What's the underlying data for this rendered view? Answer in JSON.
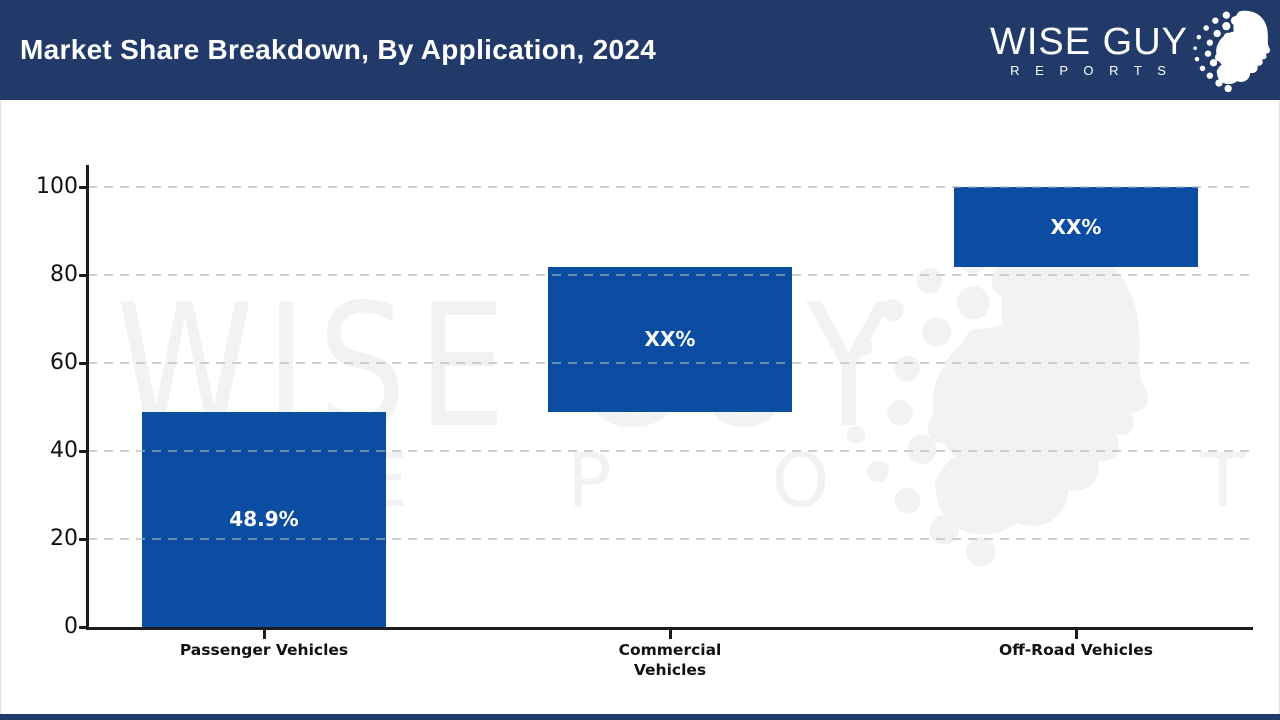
{
  "header": {
    "title": "Market Share Breakdown, By Application, 2024",
    "logo": {
      "line1": "WISE GUY",
      "line2": "R E P O R T S",
      "face_icon": "dotted-head-profile"
    }
  },
  "watermark": {
    "line1": "WISE GUY",
    "line2": "R E P O R T S",
    "face_icon": "dotted-head-profile"
  },
  "colors": {
    "header_bg": "#213A69",
    "bar_fill": "#0B4DA2",
    "bar_label_text": "#FFFFFF",
    "axis": "#1C1C1C",
    "gridline": "#D7D7D7",
    "watermark": "#F2F2F4"
  },
  "chart_data": {
    "type": "bar",
    "subtype": "waterfall",
    "title": "Market Share Breakdown, By Application, 2024",
    "categories": [
      "Passenger Vehicles",
      "Commercial\nVehicles",
      "Off-Road Vehicles"
    ],
    "bars": [
      {
        "category": "Passenger Vehicles",
        "start": 0,
        "end": 48.9,
        "label": "48.9%"
      },
      {
        "category": "Commercial Vehicles",
        "start": 48.9,
        "end": 81.8,
        "label": "XX%"
      },
      {
        "category": "Off-Road Vehicles",
        "start": 81.8,
        "end": 100,
        "label": "XX%"
      }
    ],
    "ylim": [
      0,
      105
    ],
    "yticks": [
      0,
      20,
      40,
      60,
      80,
      100
    ],
    "xlabel": "",
    "ylabel": "",
    "grid": "horizontal-dashed-over-bars",
    "legend": "none"
  }
}
